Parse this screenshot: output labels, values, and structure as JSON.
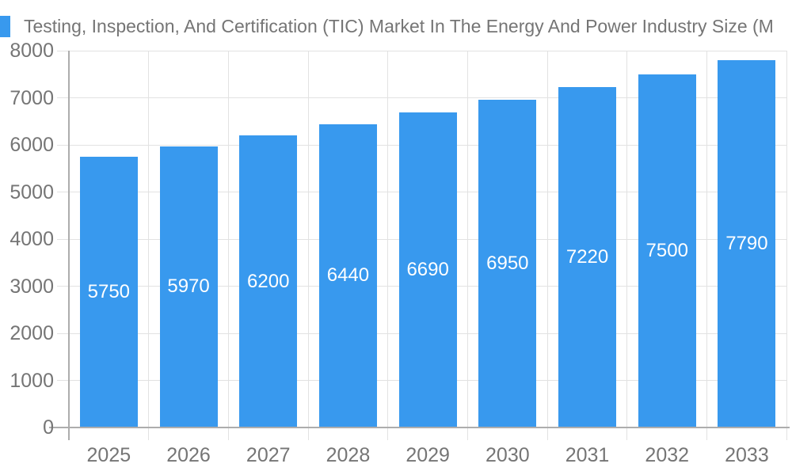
{
  "header": {
    "title": "Testing, Inspection, And Certification (TIC) Market In The Energy And Power Industry Size (M"
  },
  "colors": {
    "bar": "#3899EE",
    "text": "#757575",
    "bar_label": "#FFFFFF",
    "gridline": "#E2E2E2",
    "axis_line": "#ADADAD",
    "background": "#FFFFFF"
  },
  "chart_data": {
    "type": "bar",
    "title": "Testing, Inspection, And Certification (TIC) Market In The Energy And Power Industry Size (M",
    "categories": [
      "2025",
      "2026",
      "2027",
      "2028",
      "2029",
      "2030",
      "2031",
      "2032",
      "2033"
    ],
    "series": [
      {
        "name": "Testing, Inspection, And Certification (TIC) Market In The Energy And Power Industry Size (M",
        "values": [
          5750,
          5970,
          6200,
          6440,
          6690,
          6950,
          7220,
          7500,
          7790
        ]
      }
    ],
    "xlabel": "",
    "ylabel": "",
    "ylim": [
      0,
      8000
    ],
    "ytick_step": 1000,
    "yticks": [
      0,
      1000,
      2000,
      3000,
      4000,
      5000,
      6000,
      7000,
      8000
    ],
    "grid": true,
    "legend_position": "top-left",
    "bar_value_labels_shown": true,
    "bar_value_label_position": "middle"
  }
}
